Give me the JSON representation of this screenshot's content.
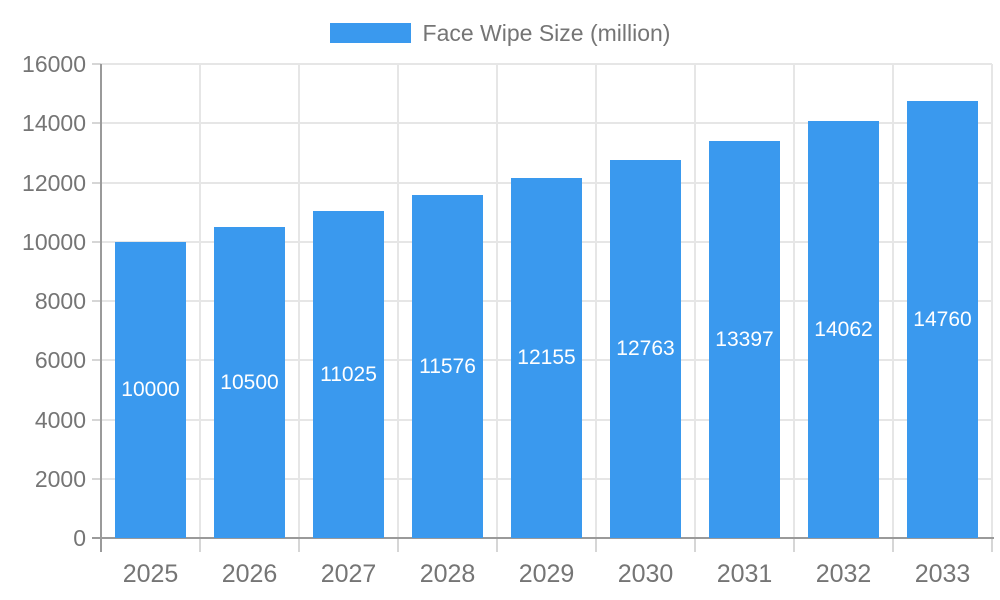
{
  "legend": {
    "label": "Face Wipe Size (million)"
  },
  "chart_data": {
    "type": "bar",
    "title": "",
    "categories": [
      "2025",
      "2026",
      "2027",
      "2028",
      "2029",
      "2030",
      "2031",
      "2032",
      "2033"
    ],
    "series": [
      {
        "name": "Face Wipe Size (million)",
        "values": [
          10000,
          10500,
          11025,
          11576,
          12155,
          12763,
          13397,
          14062,
          14760
        ]
      }
    ],
    "xlabel": "",
    "ylabel": "",
    "ylim": [
      0,
      16000
    ],
    "yticks": [
      0,
      2000,
      4000,
      6000,
      8000,
      10000,
      12000,
      14000,
      16000
    ],
    "grid": {
      "horizontal": true,
      "vertical": true
    },
    "legend_position": "top-center",
    "value_labels": "inside-center",
    "colors": {
      "bar": "#3A99EE",
      "grid_line": "#E6E6E6",
      "axis_line": "#9A9A9A",
      "tick_line": "#D6D6D6",
      "axis_text": "#757575",
      "value_label_text": "#FFFFFF",
      "background": "#FFFFFF"
    }
  }
}
